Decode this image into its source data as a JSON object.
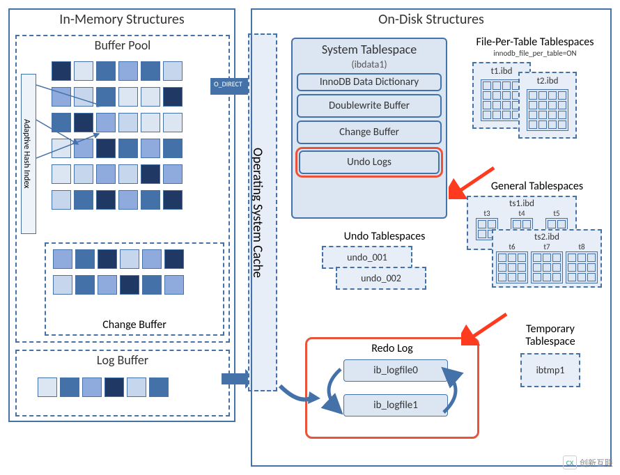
{
  "colors": {
    "border": "#4472a8",
    "bg_light": "#dce6f2",
    "bg_pale": "#e8eef7",
    "highlight": "#e8533a",
    "arrow_red": "#ff3b1f",
    "arrow_blue": "#4472a8",
    "cells": [
      "#1f3864",
      "#4472a8",
      "#8faadc",
      "#c5d6ed",
      "#dce6f2"
    ]
  },
  "left": {
    "title": "In-Memory Structures",
    "buffer_pool": {
      "title": "Buffer Pool",
      "ahi": "Adaptive Hash Index",
      "grid": {
        "rows": 6,
        "cols": 6,
        "cell_colors": [
          [
            0,
            4,
            1,
            2,
            1,
            3
          ],
          [
            2,
            3,
            1,
            4,
            4,
            0
          ],
          [
            1,
            0,
            2,
            3,
            4,
            4
          ],
          [
            4,
            2,
            0,
            1,
            2,
            1
          ],
          [
            4,
            3,
            2,
            3,
            0,
            2
          ],
          [
            3,
            1,
            0,
            2,
            1,
            0
          ]
        ]
      },
      "change_buffer": {
        "title": "Change Buffer",
        "grid": {
          "rows": 2,
          "cols": 6,
          "cell_colors": [
            [
              2,
              1,
              0,
              3,
              2,
              0
            ],
            [
              3,
              1,
              2,
              0,
              1,
              2
            ]
          ]
        }
      }
    },
    "log_buffer": {
      "title": "Log Buffer",
      "grid": {
        "rows": 1,
        "cols": 6,
        "cell_colors": [
          [
            4,
            1,
            2,
            0,
            3,
            1
          ]
        ]
      }
    }
  },
  "middle": {
    "o_direct": "O_DIRECT",
    "os_cache": "Operating System Cache"
  },
  "right": {
    "title": "On-Disk Structures",
    "system_ts": {
      "title": "System Tablespace",
      "subtitle": "(ibdata1)",
      "items": [
        "InnoDB Data Dictionary",
        "Doublewrite Buffer",
        "Change Buffer",
        "Undo Logs"
      ]
    },
    "undo_ts": {
      "title": "Undo Tablespaces",
      "items": [
        "undo_001",
        "undo_002"
      ]
    },
    "redo": {
      "title": "Redo Log",
      "items": [
        "ib_logfile0",
        "ib_logfile1"
      ]
    },
    "fpt": {
      "title": "File-Per-Table Tablespaces",
      "config": "innodb_file_per_table=ON",
      "files": [
        "t1.ibd",
        "t2.ibd"
      ]
    },
    "general": {
      "title": "General Tablespaces",
      "ts1": {
        "name": "ts1.ibd",
        "tbls": [
          "t3",
          "t4",
          "t5"
        ]
      },
      "ts2": {
        "name": "ts2.ibd",
        "tbls": [
          "t6",
          "t7",
          "t8"
        ]
      }
    },
    "temp": {
      "title": "Temporary Tablespace",
      "file": "ibtmp1"
    }
  },
  "watermark": {
    "logo": "CX",
    "text": "创新互联"
  }
}
